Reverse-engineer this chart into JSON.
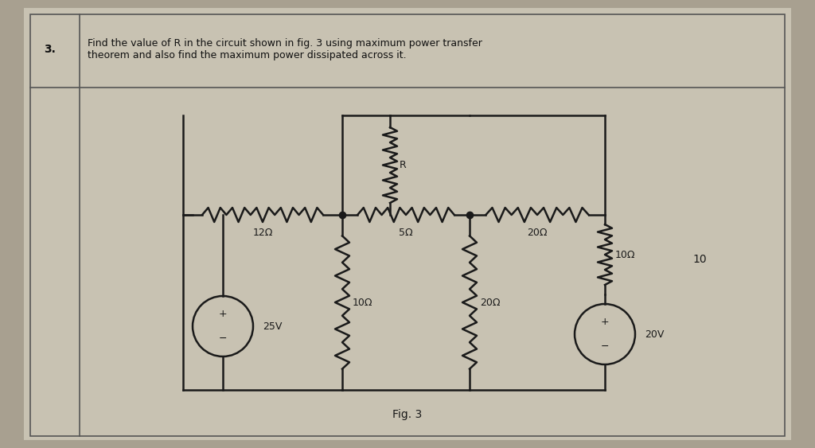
{
  "title_number": "3.",
  "title_text": "Find the value of R in the circuit shown in fig. 3 using maximum power transfer\ntheorem and also find the maximum power dissipated across it.",
  "fig_label": "Fig. 3",
  "bg_outer": "#a8a090",
  "bg_paper": "#c8c2b2",
  "bg_box": "#cec8b8",
  "line_color": "#1a1a1a",
  "text_color": "#111111",
  "R_label": "R",
  "R12_label": "12Ω",
  "R5_label": "5Ω",
  "R20h_label": "20Ω",
  "R10v_label": "10Ω",
  "R10r_label": "10Ω",
  "R20v_label": "20Ω",
  "V25_label": "25V",
  "V20_label": "20V",
  "note_text": "10"
}
